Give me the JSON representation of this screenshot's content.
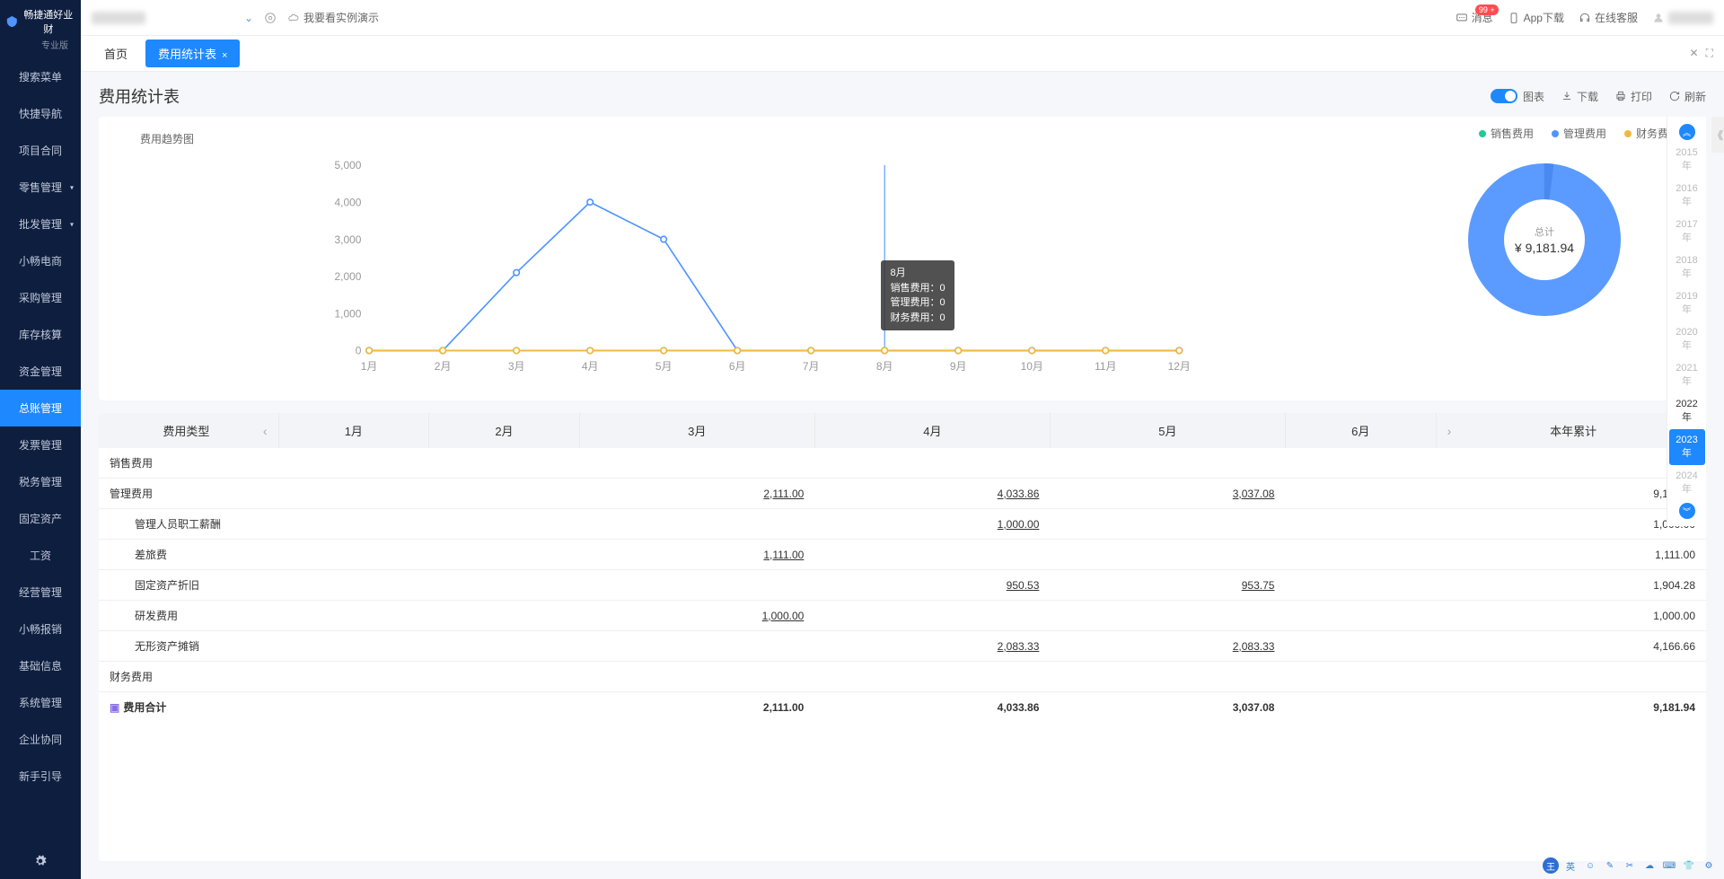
{
  "brand": {
    "name": "畅捷通好业财",
    "edition": "专业版"
  },
  "topbar": {
    "demo_link": "我要看实例演示",
    "messages": "消息",
    "badge": "99 +",
    "app_download": "App下载",
    "support": "在线客服"
  },
  "sidebar": {
    "items": [
      {
        "label": "搜索菜单",
        "caret": false
      },
      {
        "label": "快捷导航",
        "caret": false
      },
      {
        "label": "项目合同",
        "caret": false
      },
      {
        "label": "零售管理",
        "caret": true
      },
      {
        "label": "批发管理",
        "caret": true
      },
      {
        "label": "小畅电商",
        "caret": false
      },
      {
        "label": "采购管理",
        "caret": false
      },
      {
        "label": "库存核算",
        "caret": false
      },
      {
        "label": "资金管理",
        "caret": false
      },
      {
        "label": "总账管理",
        "caret": false,
        "active": true
      },
      {
        "label": "发票管理",
        "caret": false
      },
      {
        "label": "税务管理",
        "caret": false
      },
      {
        "label": "固定资产",
        "caret": false
      },
      {
        "label": "工资",
        "caret": false
      },
      {
        "label": "经营管理",
        "caret": false
      },
      {
        "label": "小畅报销",
        "caret": false
      },
      {
        "label": "基础信息",
        "caret": false
      },
      {
        "label": "系统管理",
        "caret": false
      },
      {
        "label": "企业协同",
        "caret": false
      },
      {
        "label": "新手引导",
        "caret": false
      }
    ]
  },
  "tabs": {
    "items": [
      {
        "label": "首页",
        "active": false,
        "closable": false
      },
      {
        "label": "费用统计表",
        "active": true,
        "closable": true
      }
    ]
  },
  "page": {
    "title": "费用统计表",
    "actions": {
      "chart_toggle": "图表",
      "download": "下载",
      "print": "打印",
      "refresh": "刷新"
    }
  },
  "line_chart": {
    "title": "费用趋势图",
    "y_ticks": [
      "5,000",
      "4,000",
      "3,000",
      "2,000",
      "1,000",
      "0"
    ],
    "y_max": 5000,
    "categories": [
      "1月",
      "2月",
      "3月",
      "4月",
      "5月",
      "6月",
      "7月",
      "8月",
      "9月",
      "10月",
      "11月",
      "12月"
    ],
    "series": {
      "sales": {
        "label": "销售费用",
        "color": "#20c997",
        "values": [
          0,
          0,
          0,
          0,
          0,
          0,
          0,
          0,
          0,
          0,
          0,
          0
        ]
      },
      "admin": {
        "label": "管理费用",
        "color": "#4f94ff",
        "values": [
          0,
          0,
          2100,
          4000,
          3000,
          0,
          0,
          0,
          0,
          0,
          0,
          0
        ]
      },
      "finance": {
        "label": "财务费用",
        "color": "#f0b840",
        "values": [
          0,
          0,
          0,
          0,
          0,
          0,
          0,
          0,
          0,
          0,
          0,
          0
        ]
      }
    },
    "tooltip": {
      "month": "8月",
      "lines": [
        "销售费用：0",
        "管理费用：0",
        "财务费用：0"
      ],
      "x_index": 7
    }
  },
  "donut": {
    "label": "总计",
    "value": "¥ 9,181.94",
    "color": "#5b9bff"
  },
  "years": {
    "list": [
      "2015年",
      "2016年",
      "2017年",
      "2018年",
      "2019年",
      "2020年",
      "2021年",
      "2022年",
      "2023年",
      "2024年"
    ],
    "bold": "2022年",
    "active": "2023年"
  },
  "table": {
    "type_header": "费用类型",
    "month_headers": [
      "1月",
      "2月",
      "3月",
      "4月",
      "5月",
      "6月"
    ],
    "total_header": "本年累计",
    "rows": [
      {
        "label": "销售费用",
        "indent": 0,
        "cells": [
          "",
          "",
          "",
          "",
          "",
          ""
        ],
        "total": "",
        "ul": []
      },
      {
        "label": "管理费用",
        "indent": 0,
        "cells": [
          "",
          "",
          "2,111.00",
          "4,033.86",
          "3,037.08",
          ""
        ],
        "total": "9,181.94",
        "ul": [
          2,
          3,
          4
        ]
      },
      {
        "label": "管理人员职工薪酬",
        "indent": 1,
        "cells": [
          "",
          "",
          "",
          "1,000.00",
          "",
          ""
        ],
        "total": "1,000.00",
        "ul": [
          3
        ]
      },
      {
        "label": "差旅费",
        "indent": 1,
        "cells": [
          "",
          "",
          "1,111.00",
          "",
          "",
          ""
        ],
        "total": "1,111.00",
        "ul": [
          2
        ]
      },
      {
        "label": "固定资产折旧",
        "indent": 1,
        "cells": [
          "",
          "",
          "",
          "950.53",
          "953.75",
          ""
        ],
        "total": "1,904.28",
        "ul": [
          3,
          4
        ]
      },
      {
        "label": "研发费用",
        "indent": 1,
        "cells": [
          "",
          "",
          "1,000.00",
          "",
          "",
          ""
        ],
        "total": "1,000.00",
        "ul": [
          2
        ]
      },
      {
        "label": "无形资产摊销",
        "indent": 1,
        "cells": [
          "",
          "",
          "",
          "2,083.33",
          "2,083.33",
          ""
        ],
        "total": "4,166.66",
        "ul": [
          3,
          4
        ]
      },
      {
        "label": "财务费用",
        "indent": 0,
        "cells": [
          "",
          "",
          "",
          "",
          "",
          ""
        ],
        "total": "",
        "ul": []
      }
    ],
    "total_row": {
      "label": "费用合计",
      "cells": [
        "",
        "",
        "2,111.00",
        "4,033.86",
        "3,037.08",
        ""
      ],
      "total": "9,181.94"
    }
  },
  "ime": {
    "main": "王",
    "lang": "英"
  }
}
